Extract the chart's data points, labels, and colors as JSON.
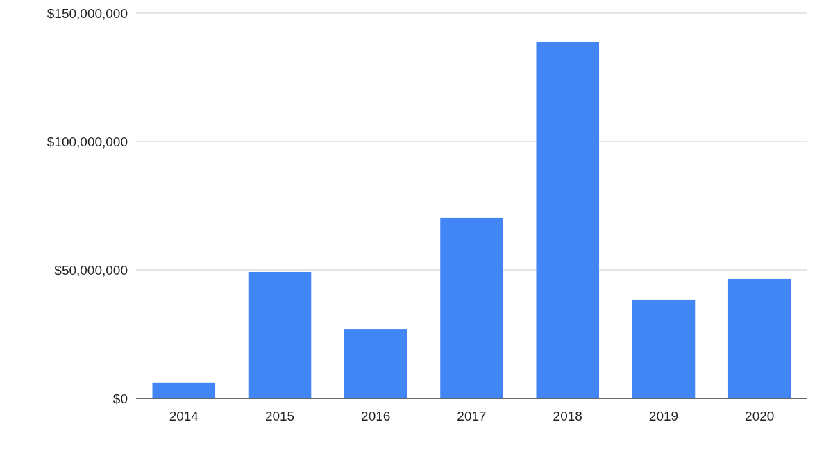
{
  "chart_data": {
    "type": "bar",
    "categories": [
      "2014",
      "2015",
      "2016",
      "2017",
      "2018",
      "2019",
      "2020"
    ],
    "values": [
      6000000,
      49200000,
      27000000,
      70300000,
      138900000,
      38400000,
      46500000
    ],
    "color": "#4285f4",
    "ylim": [
      0,
      150000000
    ],
    "yticks": [
      {
        "value": 0,
        "label": "$0"
      },
      {
        "value": 50000000,
        "label": "$50,000,000"
      },
      {
        "value": 100000000,
        "label": "$100,000,000"
      },
      {
        "value": 150000000,
        "label": "$150,000,000"
      }
    ],
    "grid": "y"
  }
}
